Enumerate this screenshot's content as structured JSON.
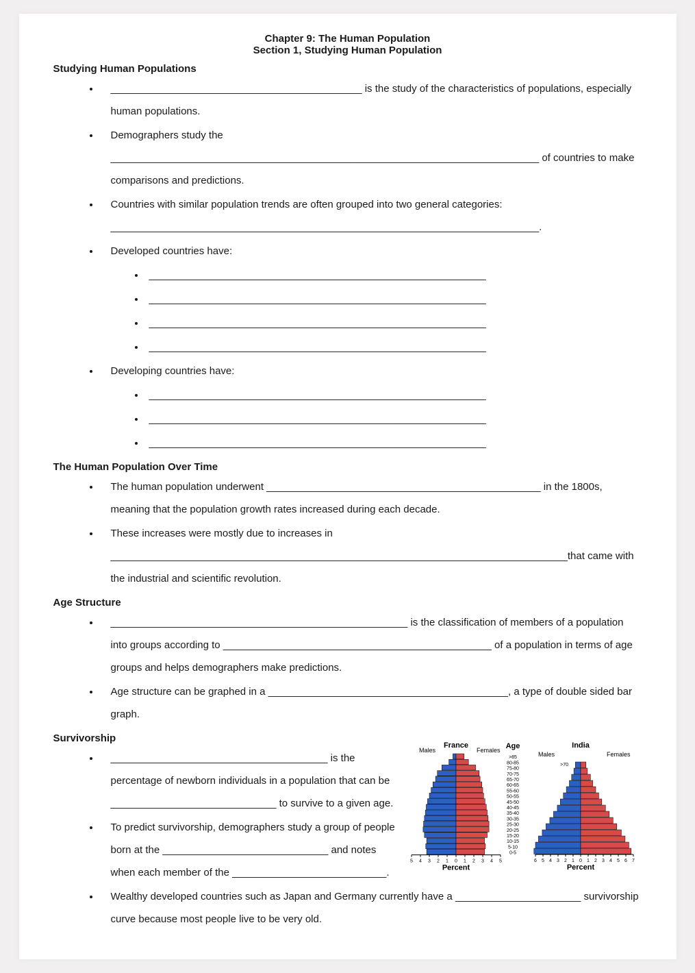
{
  "header": {
    "line1": "Chapter 9:  The Human Population",
    "line2": "Section 1, Studying Human Population"
  },
  "sections": {
    "studying": {
      "title": "Studying Human Populations",
      "b1": "____________________________________________ is the study of the characteristics of populations, especially human populations.",
      "b2": "Demographers study the ___________________________________________________________________________ of countries to make comparisons and predictions.",
      "b3": "Countries with similar population trends are often grouped into two general categories: ___________________________________________________________________________.",
      "b4": "Developed countries have:",
      "sub_blank": "___________________________________________________________",
      "b5": "Developing countries have:"
    },
    "overtime": {
      "title": "The Human Population Over Time",
      "b1": "The human population underwent ________________________________________________ in the 1800s, meaning that the population growth rates increased during each decade.",
      "b2": "These increases were mostly due to increases in ________________________________________________________________________________that came with the industrial and scientific revolution."
    },
    "agestructure": {
      "title": "Age Structure",
      "b1": "____________________________________________________ is the classification of members of a population into groups according to _______________________________________________ of a population in terms of age groups and helps demographers make predictions.",
      "b2": "Age structure can be graphed in a __________________________________________, a type of double sided bar graph."
    },
    "survivorship": {
      "title": "Survivorship",
      "b1": "______________________________________ is the percentage of newborn individuals in a population that can be _____________________________ to survive to a given age.",
      "b2": "To predict survivorship, demographers study a group of people born at the _____________________________ and notes when each member of the ___________________________.",
      "b3": "Wealthy developed countries such as Japan and Germany currently have a ______________________ survivorship curve because most people live to be very old."
    }
  },
  "pyramids": {
    "france": {
      "title": "France",
      "male_label": "Males",
      "female_label": "Females",
      "xaxis": "Percent",
      "age_label": "Age",
      "age_labels": [
        ">85",
        "80-85",
        "75-80",
        "70-75",
        "65-70",
        "60-65",
        "55-60",
        "50-55",
        "45-50",
        "40-45",
        "35-40",
        "30-35",
        "25-30",
        "20-25",
        "15-20",
        "10-15",
        "5-10",
        "0-5"
      ],
      "male_color": "#2b5fc1",
      "female_color": "#d64a4a",
      "outline_color": "#000000",
      "x_ticks_left": [
        "5",
        "4",
        "3",
        "2",
        "1",
        "0"
      ],
      "x_ticks_right": [
        "0",
        "1",
        "2",
        "3",
        "4",
        "5"
      ],
      "male_values": [
        0.35,
        0.8,
        1.6,
        2.1,
        2.3,
        2.6,
        2.8,
        3.0,
        3.2,
        3.35,
        3.45,
        3.55,
        3.65,
        3.7,
        3.55,
        3.3,
        3.4,
        3.3
      ],
      "female_values": [
        0.9,
        1.4,
        2.2,
        2.6,
        2.7,
        2.9,
        3.0,
        3.1,
        3.25,
        3.4,
        3.5,
        3.6,
        3.7,
        3.7,
        3.5,
        3.2,
        3.3,
        3.2
      ]
    },
    "india": {
      "title": "India",
      "male_label": "Males",
      "female_label": "Females",
      "xaxis": "Percent",
      "age_top": ">70",
      "male_color": "#2b5fc1",
      "female_color": "#d64a4a",
      "outline_color": "#000000",
      "x_ticks_left": [
        "6",
        "5",
        "4",
        "3",
        "2",
        "1",
        "0"
      ],
      "x_ticks_right": [
        "0",
        "1",
        "2",
        "3",
        "4",
        "5",
        "6",
        "7"
      ],
      "male_values": [
        0.7,
        0.9,
        1.2,
        1.5,
        1.9,
        2.3,
        2.7,
        3.1,
        3.6,
        4.1,
        4.6,
        5.1,
        5.6,
        6.0,
        6.2
      ],
      "female_values": [
        0.7,
        0.9,
        1.3,
        1.6,
        2.0,
        2.4,
        2.8,
        3.3,
        3.8,
        4.3,
        4.8,
        5.4,
        5.9,
        6.4,
        6.7
      ]
    }
  }
}
